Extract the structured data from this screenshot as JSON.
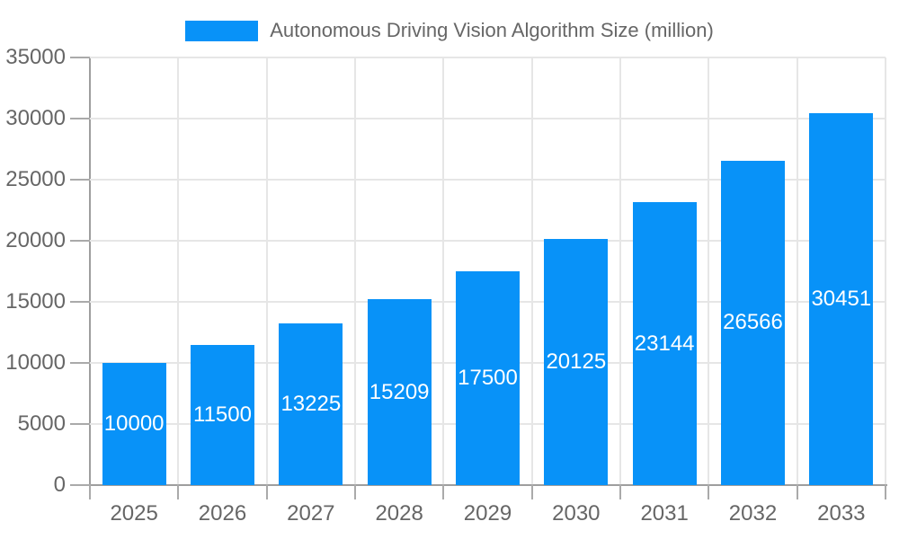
{
  "chart_data": {
    "type": "bar",
    "title": "Autonomous Driving Vision Algorithm Size (million)",
    "legend": {
      "position": "top",
      "label": "Autonomous Driving Vision Algorithm Size (million)"
    },
    "categories": [
      "2025",
      "2026",
      "2027",
      "2028",
      "2029",
      "2030",
      "2031",
      "2032",
      "2033"
    ],
    "values": [
      10000,
      11500,
      13225,
      15209,
      17500,
      20125,
      23144,
      26566,
      30451
    ],
    "xlabel": "",
    "ylabel": "",
    "ylim": [
      0,
      35000
    ],
    "yticks": [
      0,
      5000,
      10000,
      15000,
      20000,
      25000,
      30000,
      35000
    ],
    "grid": true,
    "value_labels_shown": true,
    "colors": {
      "bar": "#0892f8",
      "grid": "#e6e6e6",
      "axis": "#9e9e9e",
      "tick": "#aaaaaa",
      "tick_label": "#666666",
      "value_label": "#ffffff",
      "background": "#ffffff"
    }
  }
}
